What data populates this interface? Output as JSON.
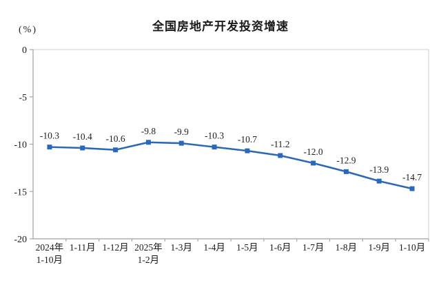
{
  "chart": {
    "title": "全国房地产开发投资增速",
    "unit_label": "(%)",
    "line_color": "#2A69B8",
    "marker_color": "#2A69B8",
    "axis_color": "#A6A6A6",
    "border_color": "#D6D6D6",
    "text_color": "#1a1a1a"
  },
  "chart_data": {
    "type": "line",
    "title": "全国房地产开发投资增速",
    "ylabel": "(%)",
    "xlabel": "",
    "categories": [
      [
        "2024年",
        "1-10月"
      ],
      [
        "1-11月"
      ],
      [
        "1-12月"
      ],
      [
        "2025年",
        "1-2月"
      ],
      [
        "1-3月"
      ],
      [
        "1-4月"
      ],
      [
        "1-5月"
      ],
      [
        "1-6月"
      ],
      [
        "1-7月"
      ],
      [
        "1-8月"
      ],
      [
        "1-9月"
      ],
      [
        "1-10月"
      ]
    ],
    "values": [
      -10.3,
      -10.4,
      -10.6,
      -9.8,
      -9.9,
      -10.3,
      -10.7,
      -11.2,
      -12.0,
      -12.9,
      -13.9,
      -14.7
    ],
    "data_labels": [
      "-10.3",
      "-10.4",
      "-10.6",
      "-9.8",
      "-9.9",
      "-10.3",
      "-10.7",
      "-11.2",
      "-12.0",
      "-12.9",
      "-13.9",
      "-14.7"
    ],
    "ylim": [
      -20,
      0
    ],
    "yticks": [
      0,
      -5,
      -10,
      -15,
      -20
    ],
    "ytick_labels": [
      "0",
      "-5",
      "-10",
      "-15",
      "-20"
    ],
    "grid": false,
    "legend": false,
    "marker": "square"
  }
}
